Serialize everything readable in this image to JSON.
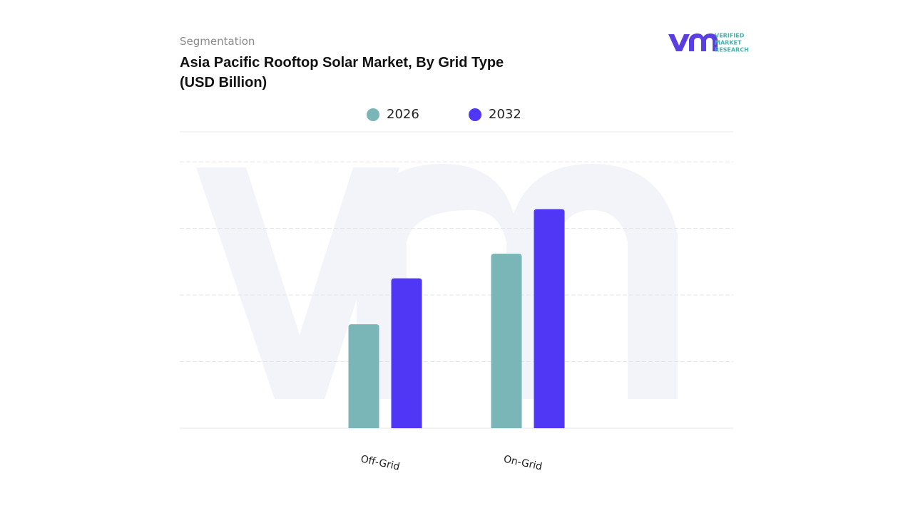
{
  "logo": {
    "line1": "VERIFIED",
    "line2": "MARKET",
    "line3": "RESEARCH"
  },
  "chart_data": {
    "type": "bar",
    "subtitle": "Segmentation",
    "title": "Asia Pacific Rooftop Solar Market, By Grid Type (USD Billion)",
    "categories": [
      "Off-Grid",
      "On-Grid"
    ],
    "series": [
      {
        "name": "2026",
        "color": "#7ab5b8",
        "values": [
          1.56,
          2.62
        ]
      },
      {
        "name": "2032",
        "color": "#4f37f5",
        "values": [
          2.25,
          3.29
        ]
      }
    ],
    "ylim": [
      0,
      4.45
    ],
    "yticks": [
      0,
      1,
      2,
      3,
      4
    ],
    "grid": true,
    "legend": "top"
  }
}
